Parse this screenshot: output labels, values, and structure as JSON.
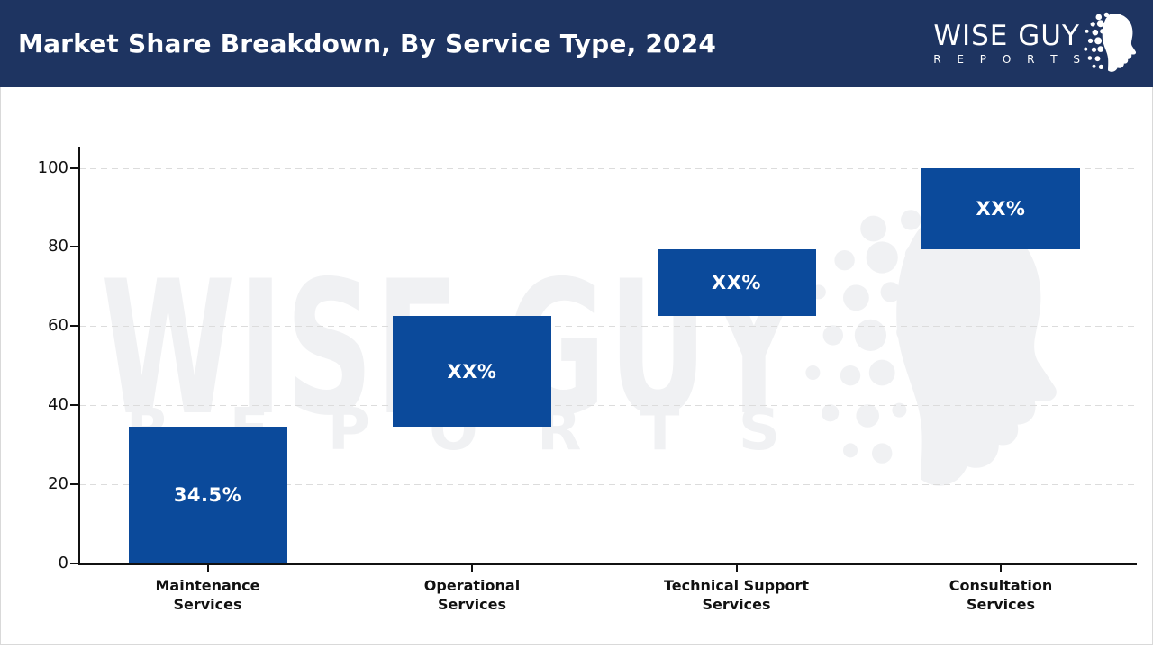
{
  "header": {
    "title": "Market Share Breakdown, By Service Type, 2024",
    "logo": {
      "line1": "WISE GUY",
      "line2": "R E P O R T S"
    }
  },
  "watermark": {
    "line1": "WISE GUY",
    "line2": "REPORTS"
  },
  "theme": {
    "header_navy": "#1e3461",
    "bar_blue": "#0b4a9b",
    "bar_label_white": "#ffffff",
    "watermark_gray": "#f0f1f3",
    "gridline_gray": "#dcdcdc",
    "axis_black": "#111111",
    "frame_gray": "#d9d9d9"
  },
  "chart_data": {
    "type": "bar",
    "subtype": "waterfall",
    "title": "Market Share Breakdown, By Service Type, 2024",
    "unit": "%",
    "categories": [
      "Maintenance Services",
      "Operational Services",
      "Technical Support Services",
      "Consultation Services"
    ],
    "category_lines": [
      [
        "Maintenance",
        "Services"
      ],
      [
        "Operational",
        "Services"
      ],
      [
        "Technical Support",
        "Services"
      ],
      [
        "Consultation",
        "Services"
      ]
    ],
    "segments": [
      {
        "category": "Maintenance Services",
        "start": 0,
        "end": 34.5,
        "label": "34.5%"
      },
      {
        "category": "Operational Services",
        "start": 34.5,
        "end": 62.5,
        "label": "XX%"
      },
      {
        "category": "Technical Support Services",
        "start": 62.5,
        "end": 79.5,
        "label": "XX%"
      },
      {
        "category": "Consultation Services",
        "start": 79.5,
        "end": 100,
        "label": "XX%"
      }
    ],
    "yticks": [
      0,
      20,
      40,
      60,
      80,
      100
    ],
    "ylim": [
      0,
      105
    ],
    "grid": "horizontal-dashed",
    "legend": "none"
  }
}
